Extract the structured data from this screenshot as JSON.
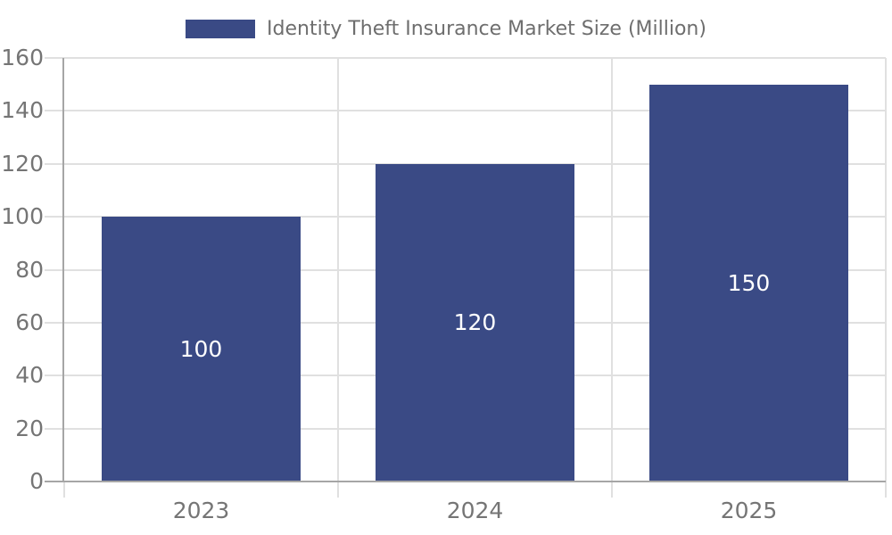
{
  "legend": {
    "label": "Identity Theft Insurance Market Size (Million)"
  },
  "colors": {
    "bar": "#3A4A85",
    "axis": "#A6A6A6",
    "grid": "#E0E0E0",
    "tick_text": "#757575",
    "title_text": "#6E6E6E",
    "value_label": "#FFFFFF",
    "background": "#FFFFFF"
  },
  "chart_data": {
    "type": "bar",
    "title": "Identity Theft Insurance Market Size (Million)",
    "series_name": "Identity Theft Insurance Market Size (Million)",
    "categories": [
      "2023",
      "2024",
      "2025"
    ],
    "values": [
      100,
      120,
      150
    ],
    "bar_labels": [
      "100",
      "120",
      "150"
    ],
    "bar_labels_position": "inside-center",
    "xlabel": "",
    "ylabel": "",
    "ylim": [
      0,
      160
    ],
    "ytick_step": 20,
    "yticks": [
      0,
      20,
      40,
      60,
      80,
      100,
      120,
      140,
      160
    ],
    "grid": true,
    "legend_position": "top-center"
  }
}
